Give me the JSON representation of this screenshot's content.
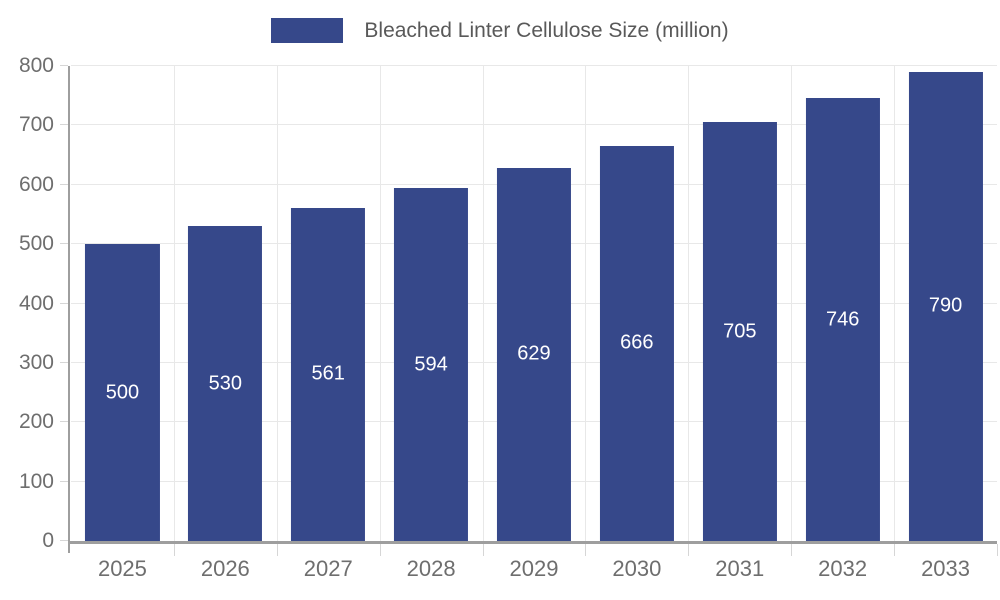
{
  "chart_data": {
    "type": "bar",
    "title": "Bleached Linter Cellulose Size (million)",
    "legend": {
      "position": "top",
      "label": "Bleached Linter Cellulose Size (million)"
    },
    "categories": [
      "2025",
      "2026",
      "2027",
      "2028",
      "2029",
      "2030",
      "2031",
      "2032",
      "2033"
    ],
    "values": [
      500,
      530,
      561,
      594,
      629,
      666,
      705,
      746,
      790
    ],
    "xlabel": "",
    "ylabel": "",
    "ylim": [
      0,
      800
    ],
    "y_ticks": [
      0,
      100,
      200,
      300,
      400,
      500,
      600,
      700,
      800
    ],
    "grid": true,
    "value_labels": "inside-center-white",
    "colors": {
      "bar": "#36488a",
      "grid": "#e8e8e8",
      "axis": "#9e9e9e",
      "tick": "#d6d6d6",
      "axis_label": "#6e6e6e",
      "legend_text": "#595959",
      "bar_value_text": "#ffffff",
      "background": "#ffffff"
    }
  }
}
